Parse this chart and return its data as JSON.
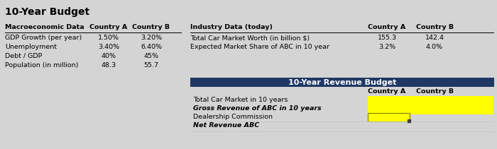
{
  "title": "10-Year Budget",
  "bg_color": "#d4d4d4",
  "macro_header": "Macroeconomic Data",
  "macro_col_a": "Country A",
  "macro_col_b": "Country B",
  "macro_rows": [
    [
      "GDP Growth (per year)",
      "1.50%",
      "3.20%"
    ],
    [
      "Unemployment",
      "3.40%",
      "6.40%"
    ],
    [
      "Debt / GDP",
      "40%",
      "45%"
    ],
    [
      "Population (in million)",
      "48.3",
      "55.7"
    ]
  ],
  "industry_header": "Industry Data (today)",
  "industry_col_a": "Country A",
  "industry_col_b": "Country B",
  "industry_rows": [
    [
      "Total Car Market Worth (in billion $)",
      "155.3",
      "142.4"
    ],
    [
      "Expected Market Share of ABC in 10 year",
      "3.2%",
      "4.0%"
    ]
  ],
  "revenue_title": "10-Year Revenue Budget",
  "revenue_col_a": "Country A",
  "revenue_col_b": "Country B",
  "revenue_rows": [
    [
      "Total Car Market in 10 years",
      false,
      false
    ],
    [
      "Gross Revenue of ABC in 10 years",
      true,
      true
    ],
    [
      "Dealership Commission",
      false,
      false
    ],
    [
      "Net Revenue ABC",
      true,
      true
    ]
  ],
  "navy_color": "#1f3864",
  "yellow_color": "#ffff00",
  "dark_yellow": "#7f7f00",
  "white": "#ffffff",
  "light_gray": "#c8c8c8"
}
